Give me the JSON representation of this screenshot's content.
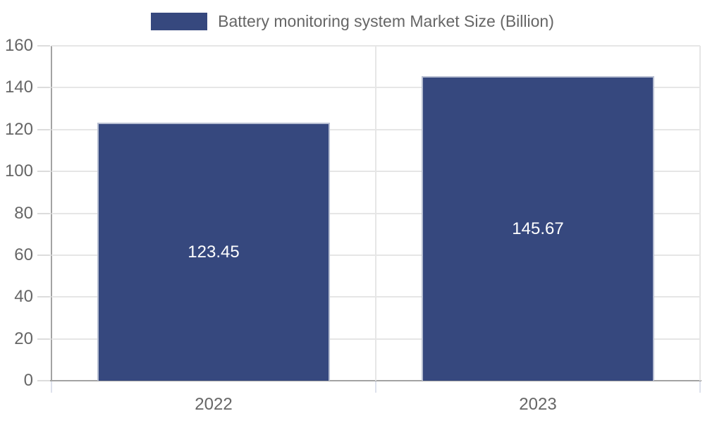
{
  "colors": {
    "bar": "#36487e",
    "bar_border": "rgba(255,255,255,0.65)",
    "grid": "#e6e6e6",
    "axis": "#a3a3a3",
    "tick": "#dcdcdc",
    "tick_below_axis": "#dde1ec",
    "axis_text": "#666666",
    "data_label": "#ffffff"
  },
  "chart_data": {
    "type": "bar",
    "series_name": "Battery monitoring system Market Size (Billion)",
    "categories": [
      "2022",
      "2023"
    ],
    "values": [
      123.45,
      145.67
    ],
    "value_labels": [
      "123.45",
      "145.67"
    ],
    "title": "",
    "xlabel": "",
    "ylabel": "",
    "ylim": [
      0,
      160
    ],
    "yticks": [
      0,
      20,
      40,
      60,
      80,
      100,
      120,
      140,
      160
    ],
    "grid": true,
    "legend_position": "top",
    "data_label_position": "center"
  }
}
